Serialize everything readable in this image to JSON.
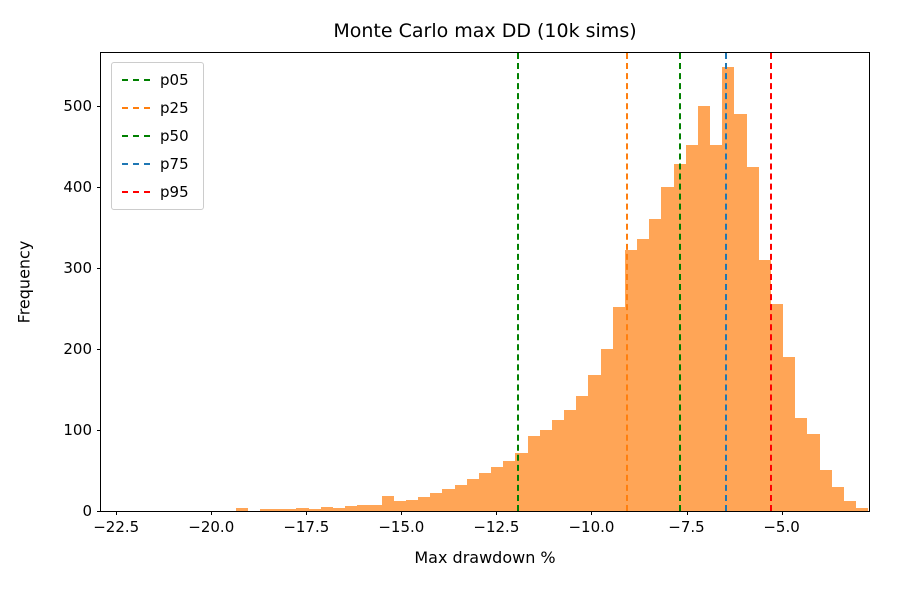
{
  "figure": {
    "title": "Monte Carlo max DD (10k sims)",
    "xlabel": "Max drawdown %",
    "ylabel": "Frequency"
  },
  "chart_data": {
    "type": "bar",
    "subtype": "histogram",
    "title": "Monte Carlo max DD (10k sims)",
    "xlabel": "Max drawdown %",
    "ylabel": "Frequency",
    "xlim": [
      -22.9,
      -2.7
    ],
    "ylim": [
      0,
      565
    ],
    "grid": false,
    "bar_color": "#ffa556",
    "bins": {
      "start": -19.36,
      "width": 0.32,
      "counts": [
        4,
        0,
        2,
        3,
        2,
        4,
        3,
        5,
        4,
        6,
        7,
        8,
        18,
        12,
        14,
        17,
        22,
        27,
        32,
        40,
        47,
        54,
        62,
        72,
        92,
        100,
        112,
        125,
        142,
        168,
        200,
        252,
        322,
        335,
        360,
        400,
        428,
        452,
        500,
        452,
        548,
        490,
        425,
        310,
        255,
        190,
        115,
        95,
        50,
        30,
        12,
        4
      ]
    },
    "x_ticks": {
      "values": [
        -22.5,
        -20.0,
        -17.5,
        -15.0,
        -12.5,
        -10.0,
        -7.5,
        -5.0
      ],
      "labels": [
        "−22.5",
        "−20.0",
        "−17.5",
        "−15.0",
        "−12.5",
        "−10.0",
        "−7.5",
        "−5.0"
      ]
    },
    "y_ticks": {
      "values": [
        0,
        100,
        200,
        300,
        400,
        500
      ],
      "labels": [
        "0",
        "100",
        "200",
        "300",
        "400",
        "500"
      ]
    },
    "percentile_lines": [
      {
        "label": "p05",
        "x": -11.95,
        "color": "#008000",
        "style": "dashed"
      },
      {
        "label": "p25",
        "x": -9.1,
        "color": "#ff7f0e",
        "style": "dashed"
      },
      {
        "label": "p50",
        "x": -7.7,
        "color": "#008000",
        "style": "dashed"
      },
      {
        "label": "p75",
        "x": -6.5,
        "color": "#1f77b4",
        "style": "dashed"
      },
      {
        "label": "p95",
        "x": -5.3,
        "color": "#ff0000",
        "style": "dashed"
      }
    ],
    "legend": {
      "position": "upper left",
      "entries": [
        "p05",
        "p25",
        "p50",
        "p75",
        "p95"
      ]
    }
  }
}
